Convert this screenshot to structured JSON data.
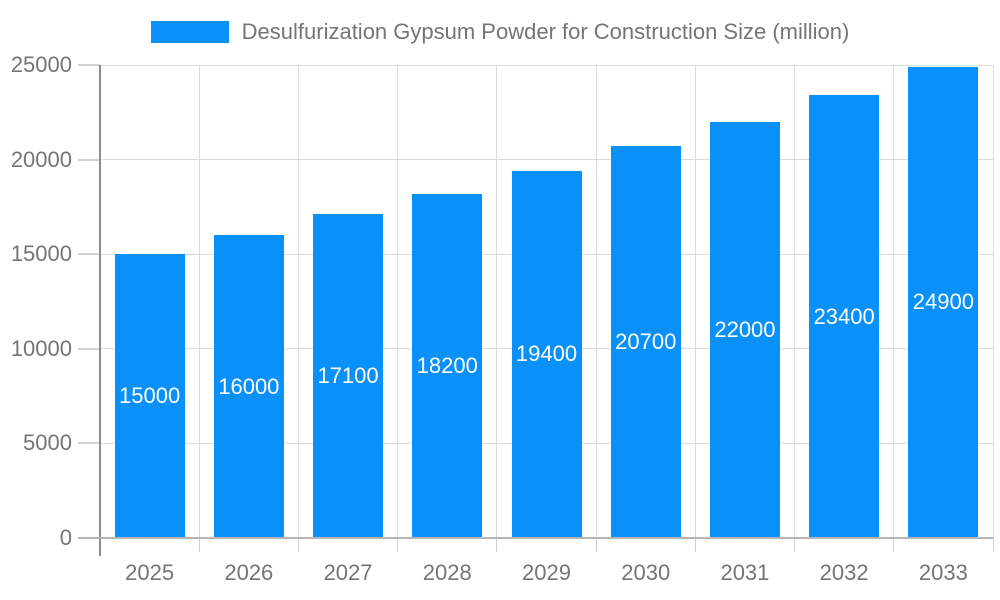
{
  "chart_data": {
    "type": "bar",
    "title": "Desulfurization Gypsum Powder for Construction Size (million)",
    "legend_position": "top",
    "categories": [
      "2025",
      "2026",
      "2027",
      "2028",
      "2029",
      "2030",
      "2031",
      "2032",
      "2033"
    ],
    "values": [
      15000,
      16000,
      17100,
      18200,
      19400,
      20700,
      22000,
      23400,
      24900
    ],
    "xlabel": "",
    "ylabel": "",
    "ylim": [
      0,
      25000
    ],
    "yticks": [
      0,
      5000,
      10000,
      15000,
      20000,
      25000
    ],
    "grid": true,
    "bar_color": "#0a90f9",
    "value_label_color": "#ffffff",
    "axis_text_color": "#757575",
    "gridline_color": "#dcdcdc"
  }
}
